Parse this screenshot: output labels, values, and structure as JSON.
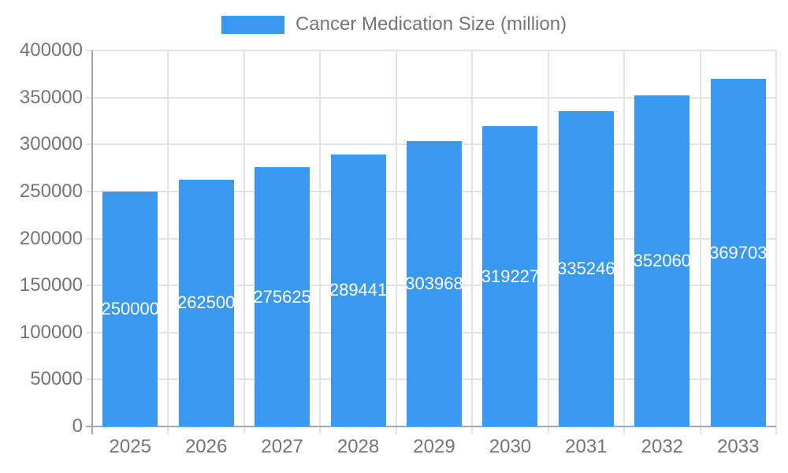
{
  "legend": {
    "label": "Cancer Medication Size (million)"
  },
  "chart_data": {
    "type": "bar",
    "title": "Cancer Medication Size (million)",
    "categories": [
      "2025",
      "2026",
      "2027",
      "2028",
      "2029",
      "2030",
      "2031",
      "2032",
      "2033"
    ],
    "series": [
      {
        "name": "Cancer Medication Size (million)",
        "values": [
          250000,
          262500,
          275625,
          289441,
          303968,
          319227,
          335246,
          352060,
          369703
        ]
      }
    ],
    "data_labels_shown": true,
    "xlabel": "",
    "ylabel": "",
    "ylim": [
      0,
      400000
    ],
    "y_tick_step": 50000,
    "y_tick_labels": [
      "0",
      "50000",
      "100000",
      "150000",
      "200000",
      "250000",
      "300000",
      "350000",
      "400000"
    ],
    "grid": true,
    "legend_position": "top-center",
    "colors": {
      "bar": "#3999ee",
      "data_label": "#ffffff",
      "axis_text": "#757575",
      "grid_line": "#e3e3e3",
      "axis_line": "#a8a8a8",
      "background": "#ffffff"
    }
  }
}
